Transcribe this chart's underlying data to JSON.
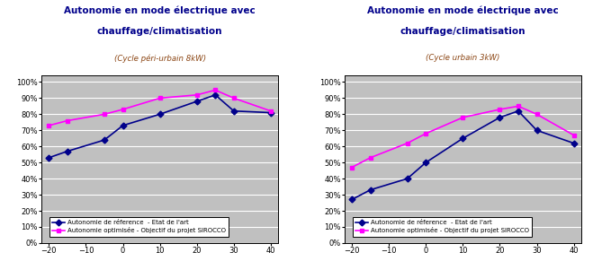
{
  "chart1": {
    "title_line1": "Autonomie en mode électrique avec",
    "title_line2": "chauffage/climatisation",
    "subtitle": "(Cycle péri-urbain 8kW)",
    "x": [
      -20,
      -15,
      -5,
      0,
      10,
      20,
      25,
      30,
      40
    ],
    "blue_y": [
      0.53,
      0.57,
      0.64,
      0.73,
      0.8,
      0.88,
      0.92,
      0.82,
      0.81
    ],
    "magenta_y": [
      0.73,
      0.76,
      0.8,
      0.83,
      0.9,
      0.92,
      0.95,
      0.9,
      0.82
    ]
  },
  "chart2": {
    "title_line1": "Autonomie en mode électrique avec",
    "title_line2": "chauffage/climatisation",
    "subtitle": "(Cycle urbain 3kW)",
    "x": [
      -20,
      -15,
      -5,
      0,
      10,
      20,
      25,
      30,
      40
    ],
    "blue_y": [
      0.27,
      0.33,
      0.4,
      0.5,
      0.65,
      0.78,
      0.82,
      0.7,
      0.62
    ],
    "magenta_y": [
      0.47,
      0.53,
      0.62,
      0.68,
      0.78,
      0.83,
      0.85,
      0.8,
      0.67
    ]
  },
  "legend_blue": "Autonomie de réference  - Etat de l'art",
  "legend_magenta": "Autonomie optimisée - Objectif du projet SIROCCO",
  "blue_color": "#00008B",
  "magenta_color": "#FF00FF",
  "bg_color": "#C0C0C0",
  "title_color": "#00008B",
  "subtitle_color": "#8B4513",
  "xlim": [
    -22,
    42
  ],
  "ylim": [
    0,
    1.04
  ],
  "xticks": [
    -20,
    -10,
    0,
    10,
    20,
    30,
    40
  ],
  "yticks": [
    0.0,
    0.1,
    0.2,
    0.3,
    0.4,
    0.5,
    0.6,
    0.7,
    0.8,
    0.9,
    1.0
  ]
}
